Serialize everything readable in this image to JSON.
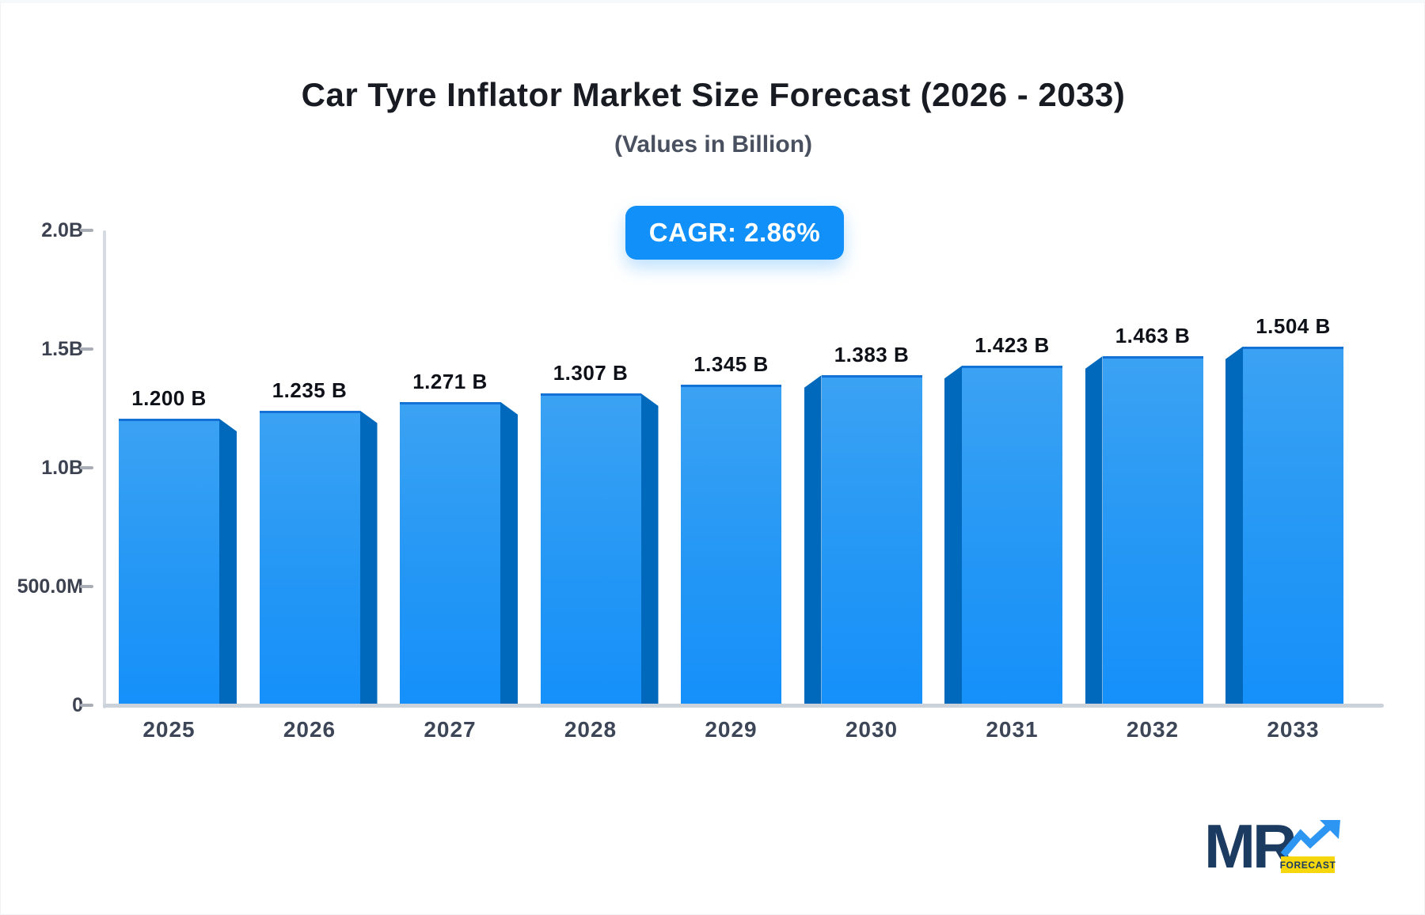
{
  "header": {
    "title": "Car Tyre Inflator Market Size Forecast (2026 - 2033)",
    "subtitle": "(Values in Billion)",
    "cagr_label": "CAGR: 2.86%"
  },
  "chart_data": {
    "type": "bar",
    "title": "Car Tyre Inflator Market Size Forecast (2026 - 2033)",
    "subtitle": "(Values in Billion)",
    "categories": [
      "2025",
      "2026",
      "2027",
      "2028",
      "2029",
      "2030",
      "2031",
      "2032",
      "2033"
    ],
    "values": [
      1.2,
      1.235,
      1.271,
      1.307,
      1.345,
      1.383,
      1.423,
      1.463,
      1.504
    ],
    "data_labels": [
      "1.200 B",
      "1.235 B",
      "1.271 B",
      "1.307 B",
      "1.345 B",
      "1.383 B",
      "1.423 B",
      "1.463 B",
      "1.504 B"
    ],
    "y_ticks": [
      {
        "label": "2.0B",
        "value": 2.0
      },
      {
        "label": "1.5B",
        "value": 1.5
      },
      {
        "label": "1.0B",
        "value": 1.0
      },
      {
        "label": "500.0M",
        "value": 0.5
      },
      {
        "label": "0",
        "value": 0.0
      }
    ],
    "ylim": [
      0,
      2.0
    ],
    "xlabel": "",
    "ylabel": "",
    "grid": false,
    "legend": false,
    "annotation": "CAGR: 2.86%",
    "style_3d": true
  },
  "colors": {
    "bar_top": "#3ba2f3",
    "bar_bottom": "#1590fa",
    "bar_edge": "#1472d6",
    "bar_side": "#0169bc",
    "badge_bg": "#1090f8",
    "axis_line": "#ccd2d9",
    "tick_text": "#3d4250"
  },
  "logo": {
    "brand": "MR",
    "sub": "FORECAST",
    "brand_color": "#1b3b60",
    "arrow_color": "#2d96f3",
    "sub_bg": "#f6d60d"
  }
}
